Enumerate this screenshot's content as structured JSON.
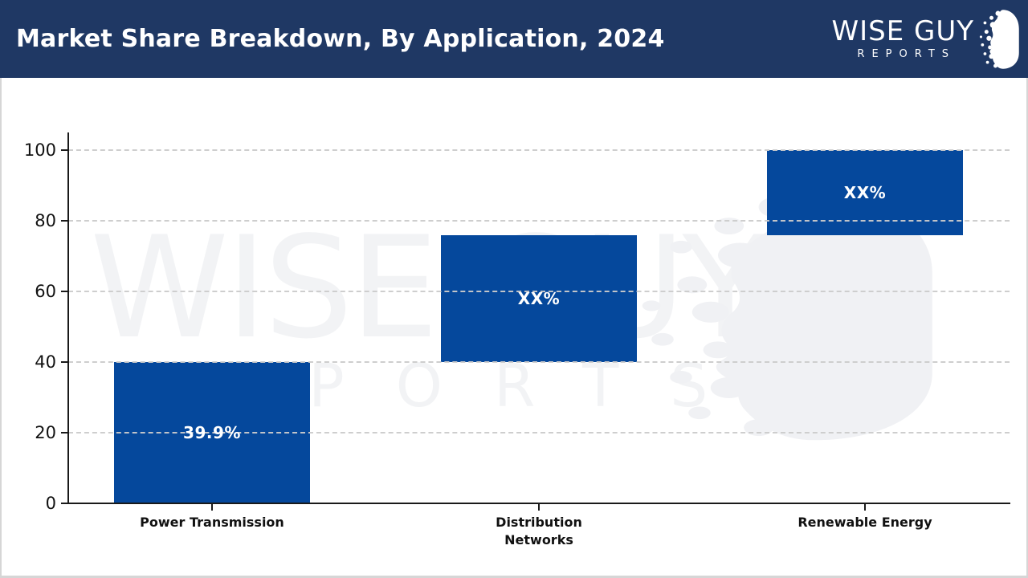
{
  "header": {
    "title": "Market Share Breakdown, By Application, 2024",
    "bg_color": "#1f3864",
    "logo": {
      "wordmark": "WISE GUY",
      "subtext": "REPORTS"
    }
  },
  "watermark": {
    "wordmark": "WISE GUY",
    "subtext": "REPORTS"
  },
  "chart_data": {
    "type": "bar",
    "variant": "floating-segment waterfall (segments stack to 100%)",
    "title": "Market Share Breakdown, By Application, 2024",
    "categories": [
      "Power Transmission",
      "Distribution\nNetworks",
      "Renewable Energy"
    ],
    "series": [
      {
        "name": "Market share (%)",
        "segments": [
          {
            "category": "Power Transmission",
            "from": 0,
            "to": 39.9,
            "label": "39.9%"
          },
          {
            "category": "Distribution Networks",
            "from": 39.9,
            "to": 76,
            "label": "XX%"
          },
          {
            "category": "Renewable Energy",
            "from": 76,
            "to": 100,
            "label": "XX%"
          }
        ]
      }
    ],
    "yticks": [
      0,
      20,
      40,
      60,
      80,
      100
    ],
    "ylim": [
      0,
      105
    ],
    "xlabel": "",
    "ylabel": "",
    "grid": "horizontal-dashed",
    "legend": "none",
    "bar_color": "#05489c",
    "bar_label_color": "#ffffff"
  }
}
